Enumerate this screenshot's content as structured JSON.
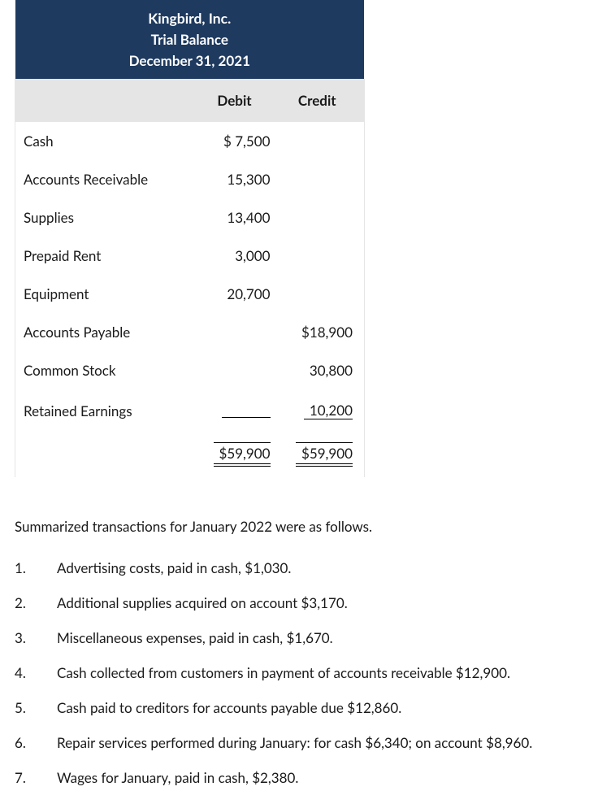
{
  "header": {
    "company": "Kingbird, Inc.",
    "report": "Trial Balance",
    "date": "December 31, 2021",
    "bg_color": "#1e3a5f",
    "text_color": "#ffffff"
  },
  "columns": {
    "account": "",
    "debit": "Debit",
    "credit": "Credit"
  },
  "rows": [
    {
      "account": "Cash",
      "debit": "$ 7,500",
      "credit": ""
    },
    {
      "account": "Accounts Receivable",
      "debit": "15,300",
      "credit": ""
    },
    {
      "account": "Supplies",
      "debit": "13,400",
      "credit": ""
    },
    {
      "account": "Prepaid Rent",
      "debit": "3,000",
      "credit": ""
    },
    {
      "account": "Equipment",
      "debit": "20,700",
      "credit": ""
    },
    {
      "account": "Accounts Payable",
      "debit": "",
      "credit": "$18,900"
    },
    {
      "account": "Common Stock",
      "debit": "",
      "credit": "30,800"
    },
    {
      "account": "Retained Earnings",
      "debit": "",
      "credit": "10,200",
      "underline": true
    }
  ],
  "totals": {
    "debit": "$59,900",
    "credit": "$59,900"
  },
  "summary_intro": "Summarized transactions for January 2022 were as follows.",
  "transactions": [
    {
      "num": "1.",
      "text": "Advertising costs, paid in cash, $1,030."
    },
    {
      "num": "2.",
      "text": "Additional supplies acquired on account $3,170."
    },
    {
      "num": "3.",
      "text": "Miscellaneous expenses, paid in cash, $1,670."
    },
    {
      "num": "4.",
      "text": "Cash collected from customers in payment of accounts receivable $12,900."
    },
    {
      "num": "5.",
      "text": "Cash paid to creditors for accounts payable due $12,860."
    },
    {
      "num": "6.",
      "text": "Repair services performed during January: for cash $6,340; on account $8,960."
    },
    {
      "num": "7.",
      "text": "Wages for January, paid in cash, $2,380."
    }
  ],
  "styling": {
    "header_bg": "#1e3a5f",
    "subheader_bg": "#e5e5e5",
    "font_size": 17,
    "font_family": "Lato, Helvetica Neue, Arial, sans-serif"
  }
}
